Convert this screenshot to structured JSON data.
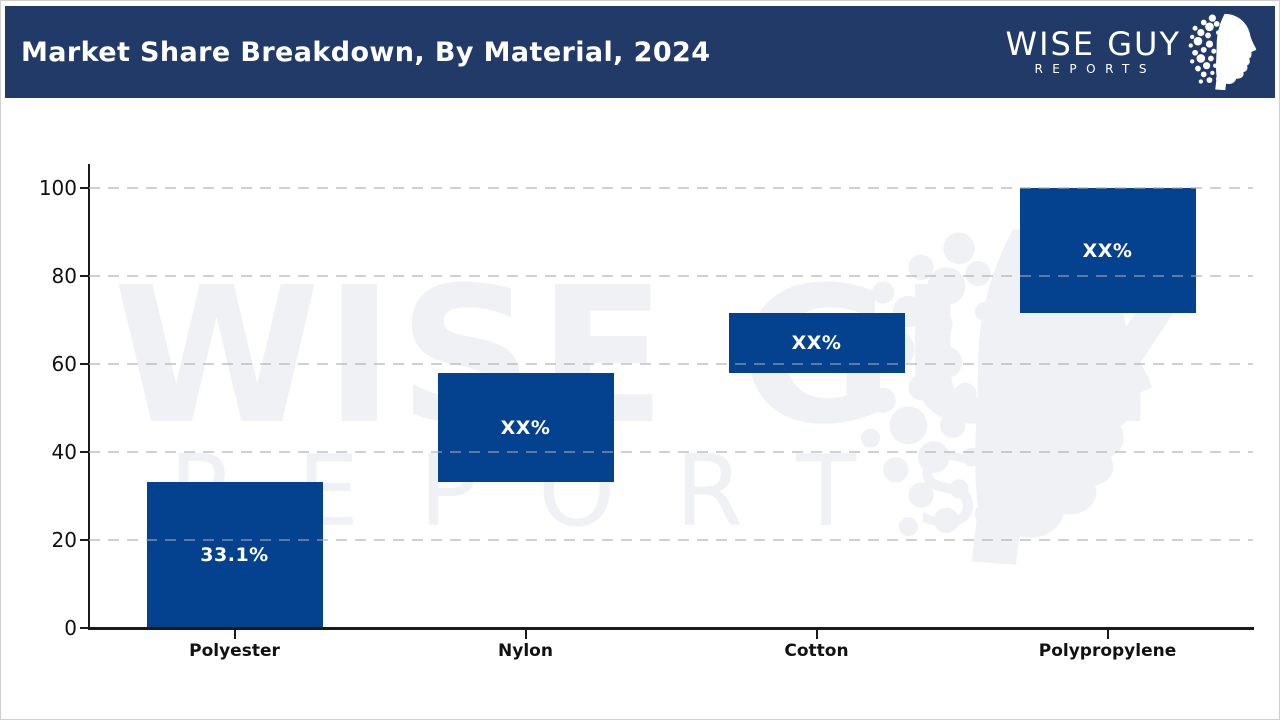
{
  "header": {
    "title": "Market Share Breakdown, By Material, 2024",
    "logo": {
      "line1": "WISE GUY",
      "line2": "REPORTS"
    }
  },
  "watermark": {
    "line1": "WISE GUY",
    "line2": "REPORTS"
  },
  "chart_data": {
    "type": "waterfall",
    "title": "Market Share Breakdown, By Material, 2024",
    "categories": [
      "Polyester",
      "Nylon",
      "Cotton",
      "Polypropylene"
    ],
    "segments": [
      {
        "category": "Polyester",
        "start": 0,
        "end": 33.1,
        "label": "33.1%"
      },
      {
        "category": "Nylon",
        "start": 33.1,
        "end": 58,
        "label": "XX%"
      },
      {
        "category": "Cotton",
        "start": 58,
        "end": 71.5,
        "label": "XX%"
      },
      {
        "category": "Polypropylene",
        "start": 71.5,
        "end": 100,
        "label": "XX%"
      }
    ],
    "y_ticks": [
      0,
      20,
      40,
      60,
      80,
      100
    ],
    "ylim": [
      0,
      105
    ],
    "grid": "dashed-horizontal",
    "legend": "none",
    "bar_color": "#04418f",
    "bar_label_color": "#ffffff"
  },
  "colors": {
    "header_bg": "#223a67",
    "bar": "#04418f",
    "axis": "#1a1a1a",
    "watermark": "#f0f1f4"
  }
}
